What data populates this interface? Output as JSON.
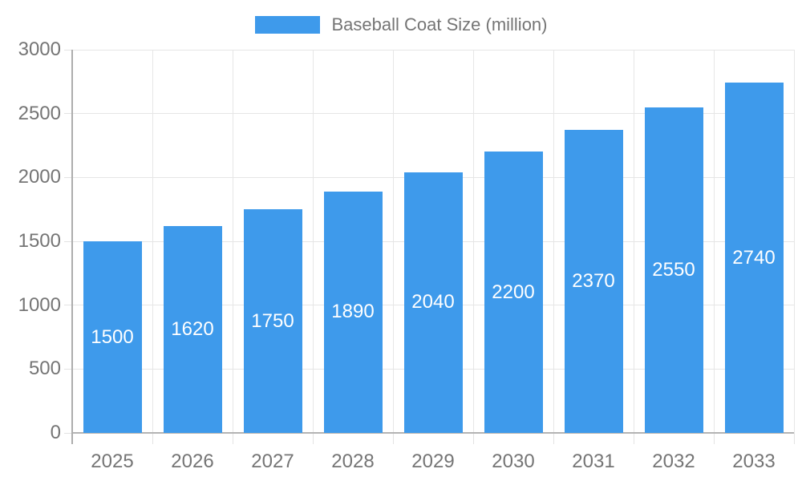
{
  "chart_data": {
    "type": "bar",
    "title": "Baseball Coat Size (million)",
    "categories": [
      "2025",
      "2026",
      "2027",
      "2028",
      "2029",
      "2030",
      "2031",
      "2032",
      "2033"
    ],
    "values": [
      1500,
      1620,
      1750,
      1890,
      2040,
      2200,
      2370,
      2550,
      2740
    ],
    "y_ticks": [
      0,
      500,
      1000,
      1500,
      2000,
      2500,
      3000
    ],
    "ylim": [
      0,
      3000
    ],
    "xlabel": "",
    "ylabel": "",
    "grid": true,
    "legend_position": "top",
    "colors": {
      "bar": "#3e9aeb",
      "value_label": "#ffffff",
      "axis_text": "#757575",
      "gridline": "#e6e6e6",
      "axis_line": "#adadad",
      "baseline": "#b3b3b3"
    }
  }
}
